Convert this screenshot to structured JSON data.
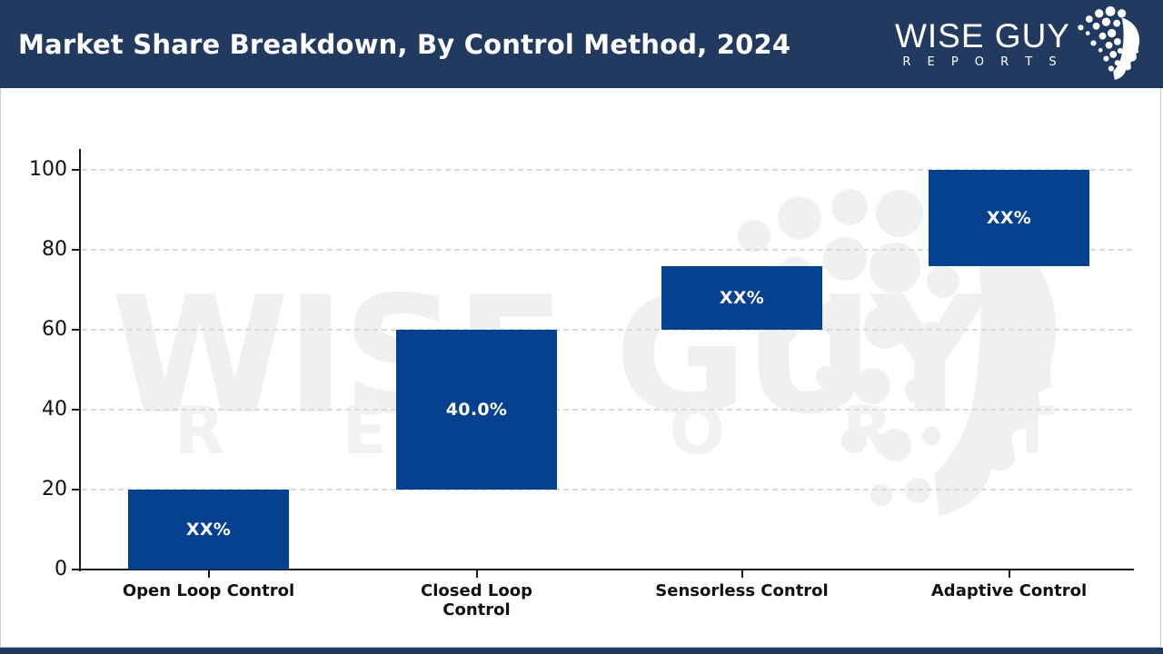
{
  "header": {
    "title": "Market Share Breakdown, By Control Method, 2024",
    "background_color": "#233A60",
    "logo": {
      "line1": "WISE GUY",
      "line2": "R E P O R T S"
    }
  },
  "watermark": {
    "line1": "WISE GUY",
    "line2": "R E P O R T S",
    "color": "#F0F0F3"
  },
  "footer": {
    "background_color": "#233A60"
  },
  "chart_data": {
    "type": "bar",
    "variant": "waterfall",
    "title": "Market Share Breakdown, By Control Method, 2024",
    "categories": [
      "Open Loop Control",
      "Closed Loop Control",
      "Sensorless Control",
      "Adaptive Control"
    ],
    "category_label_lines": [
      [
        "Open Loop Control"
      ],
      [
        "Closed Loop",
        "Control"
      ],
      [
        "Sensorless Control"
      ],
      [
        "Adaptive Control"
      ]
    ],
    "segments": [
      {
        "category": "Open Loop Control",
        "start": 0,
        "end": 20,
        "height": 20,
        "label": "XX%"
      },
      {
        "category": "Closed Loop Control",
        "start": 20,
        "end": 60,
        "height": 40,
        "label": "40.0%"
      },
      {
        "category": "Sensorless Control",
        "start": 60,
        "end": 76,
        "height": 16,
        "label": "XX%"
      },
      {
        "category": "Adaptive Control",
        "start": 76,
        "end": 100,
        "height": 24,
        "label": "XX%"
      }
    ],
    "xlabel": "",
    "ylabel": "",
    "ylim": [
      0,
      100
    ],
    "yticks": [
      0,
      20,
      40,
      60,
      80,
      100
    ],
    "grid": "horizontal-dashed",
    "legend": "none",
    "bar_color": "#05418F",
    "bar_label_color": "#ffffff",
    "axis_color": "#1a1a1a",
    "gridline_color": "#dbdbdb"
  }
}
